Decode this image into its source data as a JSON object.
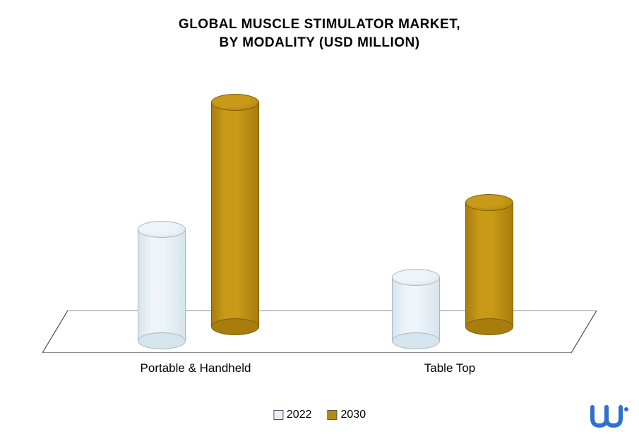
{
  "chart": {
    "type": "bar-3d-cylinder",
    "title_line1": "GLOBAL MUSCLE STIMULATOR MARKET,",
    "title_line2": "BY MODALITY (USD MILLION)",
    "title_fontsize": 19,
    "title_fontweight": "bold",
    "title_color": "#000000",
    "background_color": "#ffffff",
    "categories": [
      "Portable & Handheld",
      "Table Top"
    ],
    "series": [
      {
        "name": "2022",
        "values": [
          140,
          80
        ],
        "fill_light": "#eef4f8",
        "fill_dark": "#d6e4ed",
        "stroke": "#a6b8c4"
      },
      {
        "name": "2030",
        "values": [
          280,
          155
        ],
        "fill_light": "#c99a17",
        "fill_dark": "#a87d0e",
        "stroke": "#7d5e08"
      }
    ],
    "y_max": 300,
    "cylinder_width": 68,
    "cylinder_ellipse_height": 24,
    "category_label_fontsize": 17,
    "legend_fontsize": 16,
    "legend_swatch_2022": "#e8f0f5",
    "legend_swatch_2030": "#b9880f",
    "floor_stroke": "#4a4a4a",
    "floor_fill": "#ffffff",
    "logo_color": "#2f6fd0",
    "group_positions_x": [
      135,
      495
    ],
    "bar_gap": 28,
    "floor_depth": 52,
    "floor_skew": 36
  }
}
